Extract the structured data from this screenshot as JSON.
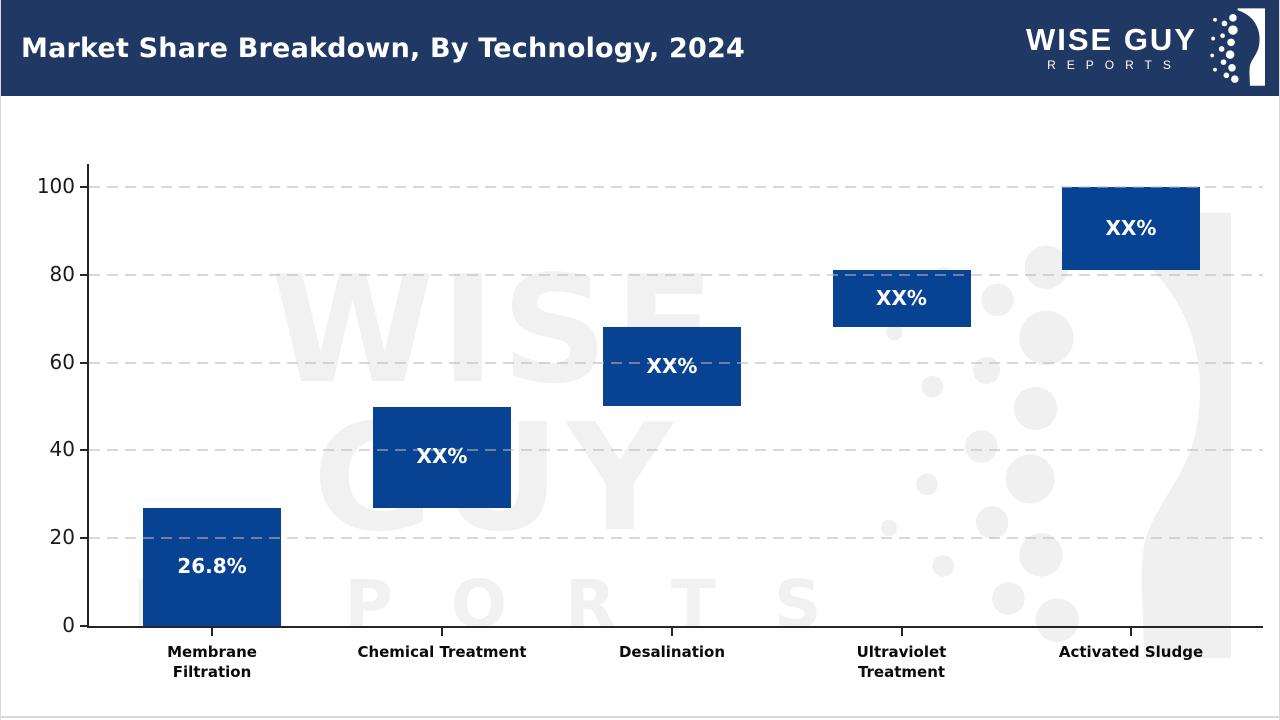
{
  "header": {
    "title": "Market Share Breakdown, By Technology, 2024",
    "logo": {
      "line1": "WISE GUY",
      "line2": "REPORTS"
    }
  },
  "watermark": {
    "line1": "WISE GUY",
    "line2": "REPORTS"
  },
  "colors": {
    "header_bg": "#203864",
    "bar": "#084292",
    "axis": "#262626",
    "title_text": "#ffffff",
    "bar_label_text": "#ffffff",
    "watermark_text": "#f1f1f1"
  },
  "chart_data": {
    "type": "bar",
    "subtype": "waterfall",
    "title": "Market Share Breakdown, By Technology, 2024",
    "categories": [
      "Membrane Filtration",
      "Chemical Treatment",
      "Desalination",
      "Ultraviolet Treatment",
      "Activated Sludge"
    ],
    "category_lines": [
      [
        "Membrane",
        "Filtration"
      ],
      [
        "Chemical Treatment"
      ],
      [
        "Desalination"
      ],
      [
        "Ultraviolet",
        "Treatment"
      ],
      [
        "Activated Sludge"
      ]
    ],
    "segments": [
      {
        "start": 0,
        "end": 26.8,
        "label": "26.8%"
      },
      {
        "start": 26.8,
        "end": 50,
        "label": "XX%"
      },
      {
        "start": 50,
        "end": 68,
        "label": "XX%"
      },
      {
        "start": 68,
        "end": 81,
        "label": "XX%"
      },
      {
        "start": 81,
        "end": 100,
        "label": "XX%"
      }
    ],
    "y_ticks": [
      0,
      20,
      40,
      60,
      80,
      100
    ],
    "ylim": [
      0,
      105
    ],
    "xlabel": "",
    "ylabel": "",
    "grid": "horizontal-dashed",
    "legend": "none"
  }
}
